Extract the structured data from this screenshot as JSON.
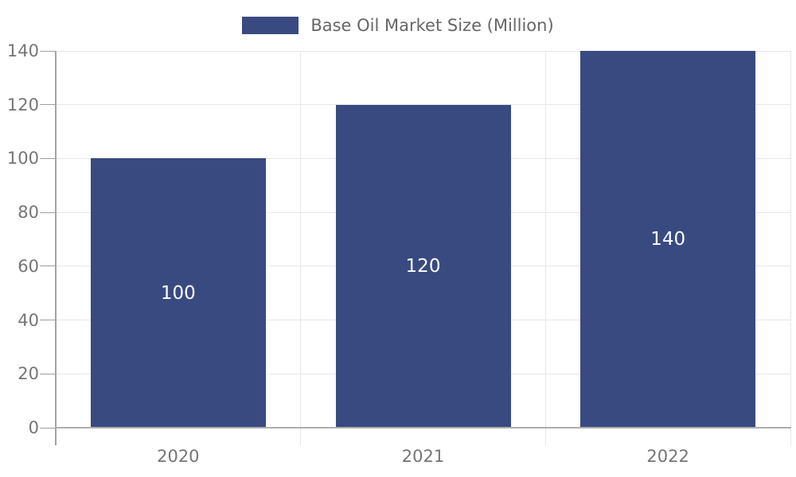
{
  "legend": {
    "label": "Base Oil Market Size (Million)"
  },
  "chart_data": {
    "type": "bar",
    "title": "Base Oil Market Size (Million)",
    "categories": [
      "2020",
      "2021",
      "2022"
    ],
    "values": [
      100,
      120,
      140
    ],
    "series": [
      {
        "name": "Base Oil Market Size (Million)",
        "values": [
          100,
          120,
          140
        ]
      }
    ],
    "xlabel": "",
    "ylabel": "",
    "ylim": [
      0,
      140
    ],
    "yticks": [
      0,
      20,
      40,
      60,
      80,
      100,
      120,
      140
    ],
    "grid": true,
    "legend_position": "top",
    "bar_color": "#394a81",
    "value_label_color": "#ffffff",
    "axis_text_color": "#757575",
    "legend_text_color": "#666666",
    "gridline_color": "#e7e7e7"
  }
}
